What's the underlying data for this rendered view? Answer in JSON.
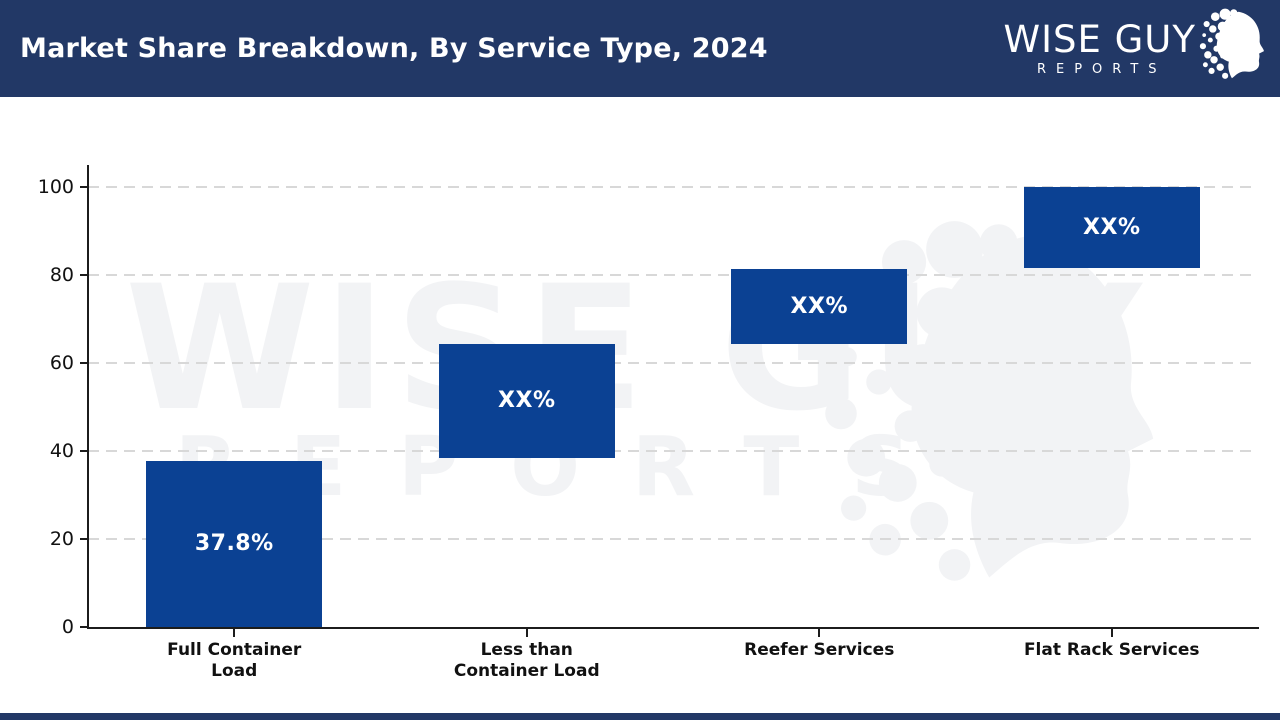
{
  "header": {
    "title": "Market Share Breakdown, By Service Type, 2024",
    "logo": {
      "name": "WISE GUY",
      "sub": "REPORTS"
    }
  },
  "watermark": {
    "line1": "WISE GUY",
    "line2": "REPORTS"
  },
  "colors": {
    "header_bg": "#223866",
    "footer_bg": "#223866",
    "bar": "#0b4193",
    "bar_label": "#ffffff",
    "grid": "#d8d8d8",
    "axis": "#1c1c1c",
    "watermark": "#f2f3f5"
  },
  "chart_data": {
    "type": "bar",
    "variant": "waterfall",
    "title": "Market Share Breakdown, By Service Type, 2024",
    "categories": [
      "Full Container Load",
      "Less than Container Load",
      "Reefer Services",
      "Flat Rack Services"
    ],
    "category_tick_lines": [
      [
        "Full Container",
        "Load"
      ],
      [
        "Less than",
        "Container Load"
      ],
      [
        "Reefer Services"
      ],
      [
        "Flat Rack Services"
      ]
    ],
    "segments": [
      {
        "category": "Full Container Load",
        "start": 0,
        "end": 37.8,
        "label": "37.8%"
      },
      {
        "category": "Less than Container Load",
        "start": 38.5,
        "end": 64.3,
        "label": "XX%"
      },
      {
        "category": "Reefer Services",
        "start": 64.3,
        "end": 81.4,
        "label": "XX%"
      },
      {
        "category": "Flat Rack Services",
        "start": 81.5,
        "end": 100,
        "label": "XX%"
      }
    ],
    "yticks": [
      0,
      20,
      40,
      60,
      80,
      100
    ],
    "ylim": [
      0,
      105
    ],
    "xlabel": "",
    "ylabel": "",
    "grid": {
      "horizontal": true,
      "style": "dashed"
    },
    "legend": "none",
    "bar_color": "#0b4193",
    "bar_label_color": "#ffffff"
  }
}
